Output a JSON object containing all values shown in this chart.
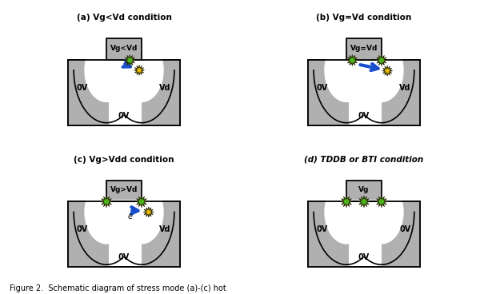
{
  "title_a": "(a) Vg<Vd condition",
  "title_b": "(b) Vg=Vd condition",
  "title_c": "(c) Vg>Vdd condition",
  "title_d": "(d) TDDB or BTI condition",
  "caption": "Figure 2.  Schematic diagram of stress mode (a)-(c) hot",
  "bg_color": "#ffffff",
  "light_gray": "#b0b0b0",
  "white": "#ffffff",
  "black": "#000000",
  "green_spark": "#4db518",
  "yellow_spark": "#e8b800",
  "blue_arrow": "#1a4fcc",
  "gate_label_a": "Vg<Vd",
  "gate_label_b": "Vg=Vd",
  "gate_label_c": "Vg>Vd",
  "gate_label_d": "Vg"
}
